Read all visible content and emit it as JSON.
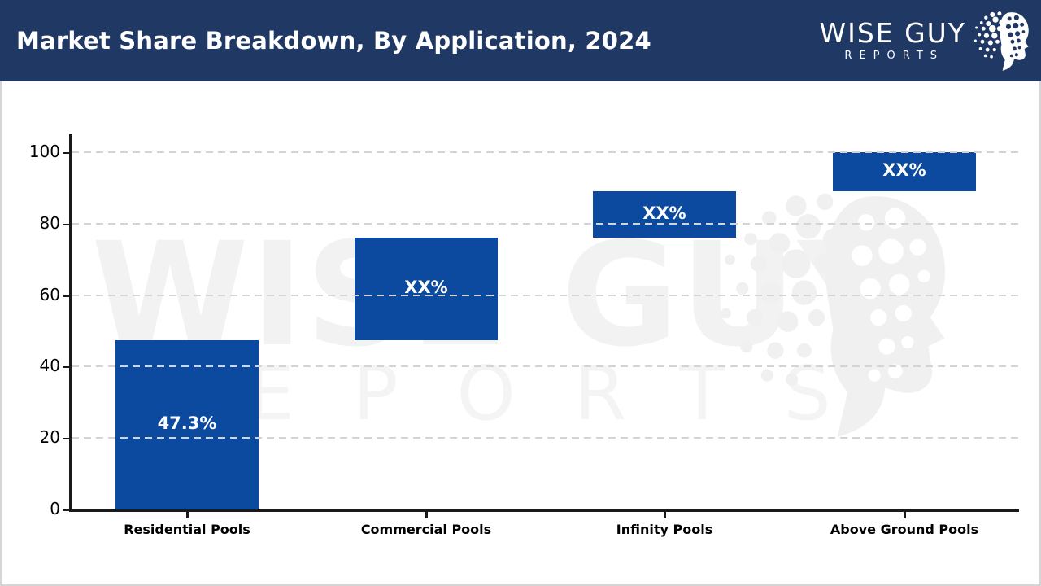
{
  "header": {
    "title": "Market Share Breakdown, By Application, 2024",
    "logo": {
      "line1": "WISE GUY",
      "line2": "REPORTS"
    }
  },
  "watermark": {
    "line1": "WISE GUY",
    "line2": "REPORTS"
  },
  "colors": {
    "header_bg": "#1f3864",
    "bar": "#0b4a9f",
    "bar_label": "#ffffff",
    "grid": "#d4d4d4",
    "axis": "#1a1a1a",
    "watermark": "#f2f2f2"
  },
  "chart_data": {
    "type": "bar",
    "subtype": "waterfall",
    "title": "Market Share Breakdown, By Application, 2024",
    "categories": [
      "Residential Pools",
      "Commercial Pools",
      "Infinity Pools",
      "Above Ground Pools"
    ],
    "bars": [
      {
        "category": "Residential Pools",
        "start": 0,
        "end": 47.3,
        "label": "47.3%"
      },
      {
        "category": "Commercial Pools",
        "start": 47.3,
        "end": 76,
        "label": "XX%"
      },
      {
        "category": "Infinity Pools",
        "start": 76,
        "end": 89,
        "label": "XX%"
      },
      {
        "category": "Above Ground Pools",
        "start": 89,
        "end": 100,
        "label": "XX%"
      }
    ],
    "xlabel": "",
    "ylabel": "",
    "ylim": [
      0,
      100
    ],
    "yticks": [
      0,
      20,
      40,
      60,
      80,
      100
    ],
    "grid": true,
    "grid_style": "dashed",
    "legend": null
  }
}
